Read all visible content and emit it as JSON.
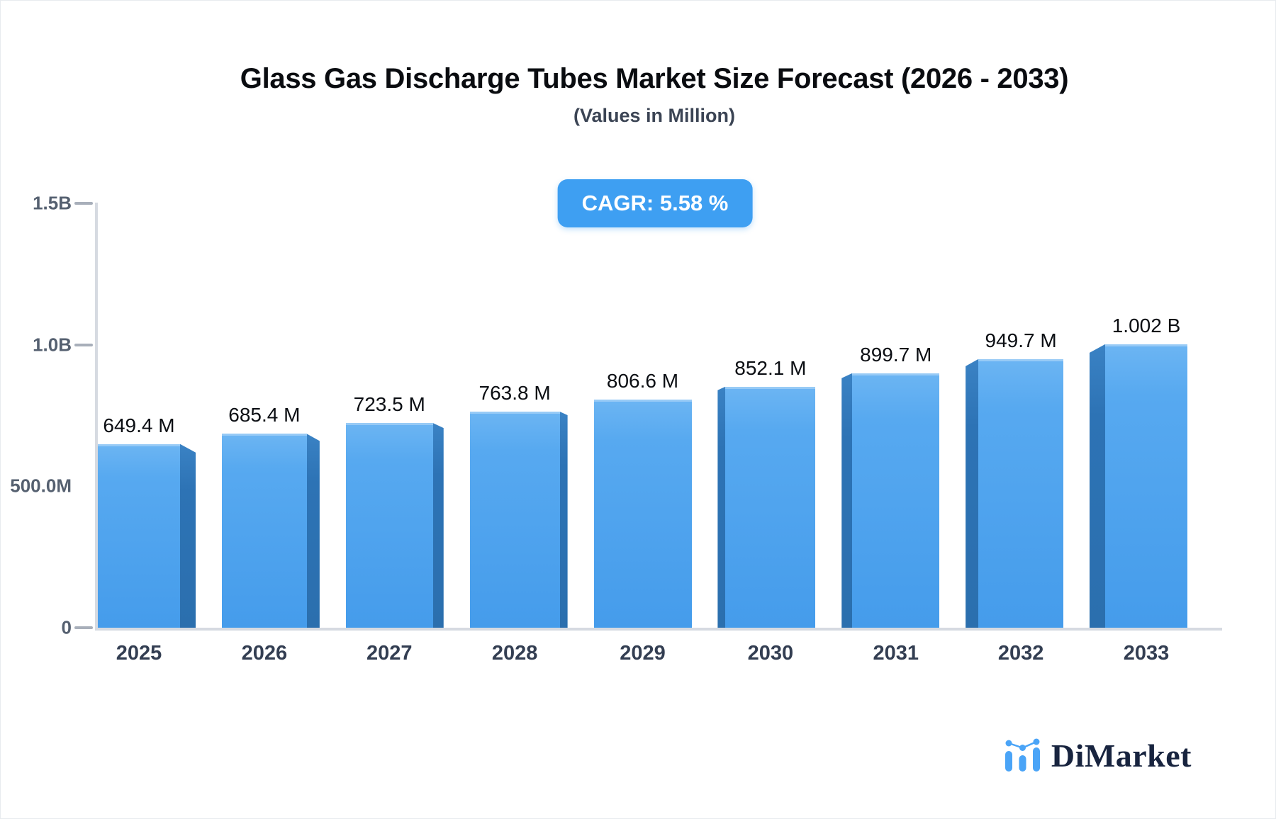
{
  "header": {
    "title": "Glass Gas Discharge Tubes Market Size Forecast (2026 - 2033)",
    "subtitle": "(Values in Million)"
  },
  "badge": {
    "label": "CAGR: 5.58 %"
  },
  "chart_data": {
    "type": "bar",
    "title": "Glass Gas Discharge Tubes Market Size Forecast (2026 - 2033)",
    "subtitle": "(Values in Million)",
    "cagr_percent": 5.58,
    "categories": [
      "2025",
      "2026",
      "2027",
      "2028",
      "2029",
      "2030",
      "2031",
      "2032",
      "2033"
    ],
    "values": [
      649.4,
      685.4,
      723.5,
      763.8,
      806.6,
      852.1,
      899.7,
      949.7,
      1002.0
    ],
    "value_labels": [
      "649.4 M",
      "685.4 M",
      "723.5 M",
      "763.8 M",
      "806.6 M",
      "852.1 M",
      "899.7 M",
      "949.7 M",
      "1.002 B"
    ],
    "unit": "Million",
    "ylim": [
      0,
      1500
    ],
    "yticks": [
      {
        "label": "1.5B",
        "value": 1500,
        "dash": true
      },
      {
        "label": "1.0B",
        "value": 1000,
        "dash": true
      },
      {
        "label": "500.0M",
        "value": 500,
        "dash": false
      },
      {
        "label": "0",
        "value": 0,
        "dash": true
      }
    ],
    "grid": false,
    "legend": false,
    "colors": {
      "bar_face": "#4fa5ee",
      "bar_side": "#2d73b5",
      "axis": "#d6dae1",
      "tick_label": "#556070",
      "x_label": "#333e52",
      "value_label": "#0b0e13",
      "badge_bg": "#3e9ff2"
    }
  },
  "branding": {
    "logo_text": "DiMarket",
    "logo_text_color": "#18243f",
    "logo_icon_color": "#4aa4f7"
  }
}
